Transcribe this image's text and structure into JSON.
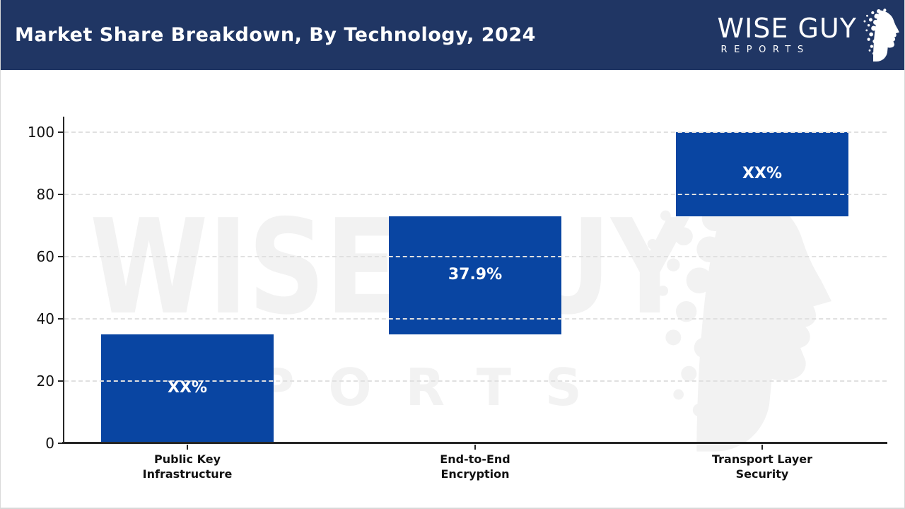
{
  "header": {
    "title": "Market Share Breakdown, By Technology, 2024",
    "logo": {
      "wordmark": "WISE GUY",
      "subtext": "REPORTS"
    }
  },
  "watermark": {
    "wordmark": "WISE GUY",
    "subtext": "REPORTS"
  },
  "colors": {
    "header_bg": "#203664",
    "bar": "#0945a2",
    "bar_label": "#ffffff",
    "grid": "#e0e0e0",
    "axis": "#262626",
    "tick_label": "#111111",
    "watermark": "#f2f2f2"
  },
  "chart_data": {
    "type": "bar",
    "subtype": "waterfall",
    "title": "Market Share Breakdown, By Technology, 2024",
    "xlabel": "",
    "ylabel": "",
    "ylim": [
      0,
      105
    ],
    "yticks": [
      0,
      20,
      40,
      60,
      80,
      100
    ],
    "grid": "horizontal-dashed",
    "legend": "none",
    "categories": [
      "Public Key Infrastructure",
      "End-to-End Encryption",
      "Transport Layer Security"
    ],
    "bars": [
      {
        "category_lines": [
          "Public Key",
          "Infrastructure"
        ],
        "start": 0,
        "end": 35,
        "value_label": "XX%"
      },
      {
        "category_lines": [
          "End-to-End",
          "Encryption"
        ],
        "start": 35,
        "end": 72.9,
        "value_label": "37.9%"
      },
      {
        "category_lines": [
          "Transport Layer",
          "Security"
        ],
        "start": 72.9,
        "end": 100,
        "value_label": "XX%"
      }
    ]
  }
}
